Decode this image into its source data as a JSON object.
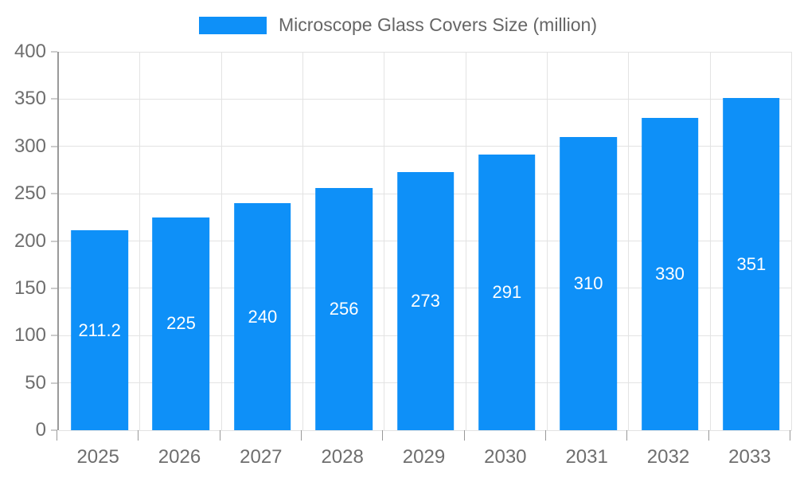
{
  "chart_data": {
    "type": "bar",
    "title": "Microscope Glass Covers Size (million)",
    "categories": [
      "2025",
      "2026",
      "2027",
      "2028",
      "2029",
      "2030",
      "2031",
      "2032",
      "2033"
    ],
    "values": [
      211.2,
      225,
      240,
      256,
      273,
      291,
      310,
      330,
      351
    ],
    "bar_labels": [
      "211.2",
      "225",
      "240",
      "256",
      "273",
      "291",
      "310",
      "330",
      "351"
    ],
    "xlabel": "",
    "ylabel": "",
    "ylim": [
      0,
      400
    ],
    "yticks": [
      0,
      50,
      100,
      150,
      200,
      250,
      300,
      350,
      400
    ],
    "grid": true,
    "legend_position": "top",
    "legend_entries": [
      "Microscope Glass Covers Size (million)"
    ],
    "colors": {
      "bar": "#0e90f8",
      "bar_label_text": "#ffffff",
      "axis_line": "#999999",
      "gridline": "#e3e3e3",
      "tick_text": "#6e6e6e",
      "legend_text": "#666666",
      "background": "#ffffff"
    }
  }
}
